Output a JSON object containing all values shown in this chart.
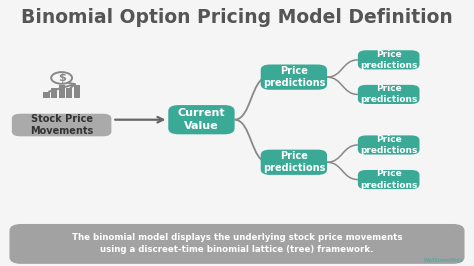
{
  "title": "Binomial Option Pricing Model Definition",
  "title_fontsize": 13.5,
  "title_color": "#555555",
  "bg_color": "#f5f5f5",
  "teal_color": "#3aaa96",
  "gray_box_color": "#aaaaaa",
  "footer_bg": "#999999",
  "footer_text": "The binomial model displays the underlying stock price movements\nusing a discreet-time binomial lattice (tree) framework.",
  "current_value_label": "Current\nValue",
  "stock_label": "Stock Price\nMovements",
  "branch_label": "Price\npredictions",
  "leaf_label": "Price\npredictions",
  "wsm_color": "#3aaa96"
}
